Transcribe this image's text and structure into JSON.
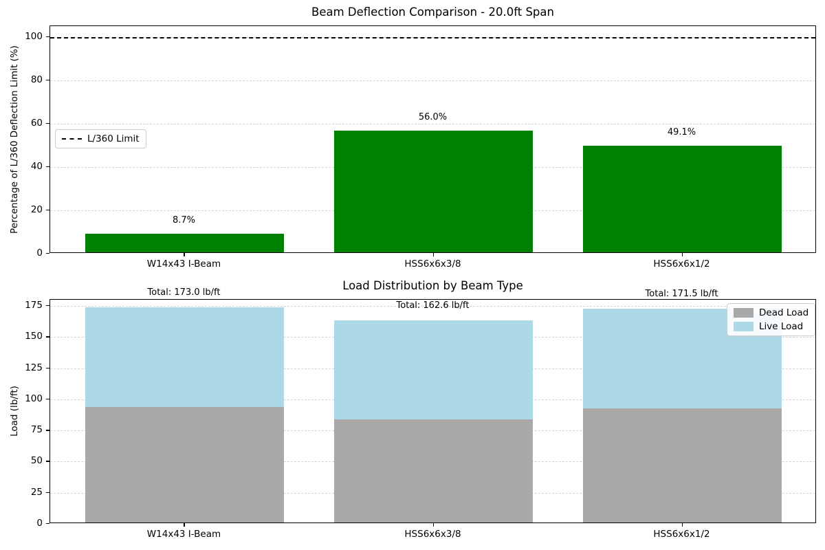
{
  "figure": {
    "background": "#ffffff",
    "text_color": "#000000",
    "gridline_color": "#d4d4d4"
  },
  "chart_data": [
    {
      "type": "bar",
      "title": "Beam Deflection Comparison - 20.0ft Span",
      "xlabel": "",
      "ylabel": "Percentage of L/360 Deflection Limit (%)",
      "categories": [
        "W14x43 I-Beam",
        "HSS6x6x3/8",
        "HSS6x6x1/2"
      ],
      "values": [
        8.7,
        56.0,
        49.1
      ],
      "bar_labels": [
        "8.7%",
        "56.0%",
        "49.1%"
      ],
      "bar_color": "#008000",
      "yticks": [
        0,
        20,
        40,
        60,
        80,
        100
      ],
      "ylim": [
        0,
        105
      ],
      "grid": "dashed horizontal",
      "limit_line": {
        "value": 100,
        "label": "L/360 Limit",
        "color": "#000000",
        "style": "dashed"
      },
      "legend": {
        "position": "center-left",
        "entries": [
          {
            "label": "L/360 Limit",
            "swatch": "dashed-line",
            "color": "#000000"
          }
        ]
      }
    },
    {
      "type": "stacked-bar",
      "title": "Load Distribution by Beam Type",
      "xlabel": "",
      "ylabel": "Load (lb/ft)",
      "categories": [
        "W14x43 I-Beam",
        "HSS6x6x3/8",
        "HSS6x6x1/2"
      ],
      "series": [
        {
          "name": "Dead Load",
          "values": [
            93.0,
            82.6,
            91.5
          ],
          "color": "#a9a9a9"
        },
        {
          "name": "Live Load",
          "values": [
            80.0,
            80.0,
            80.0
          ],
          "color": "#add8e6"
        }
      ],
      "totals": [
        173.0,
        162.6,
        171.5
      ],
      "total_labels": [
        "Total: 173.0 lb/ft",
        "Total: 162.6 lb/ft",
        "Total: 171.5 lb/ft"
      ],
      "yticks": [
        0,
        25,
        50,
        75,
        100,
        125,
        150,
        175
      ],
      "ylim": [
        0,
        180
      ],
      "grid": "dashed horizontal",
      "legend": {
        "position": "upper-right",
        "entries": [
          {
            "label": "Dead Load",
            "swatch": "patch",
            "color": "#a9a9a9"
          },
          {
            "label": "Live Load",
            "swatch": "patch",
            "color": "#add8e6"
          }
        ]
      }
    }
  ]
}
